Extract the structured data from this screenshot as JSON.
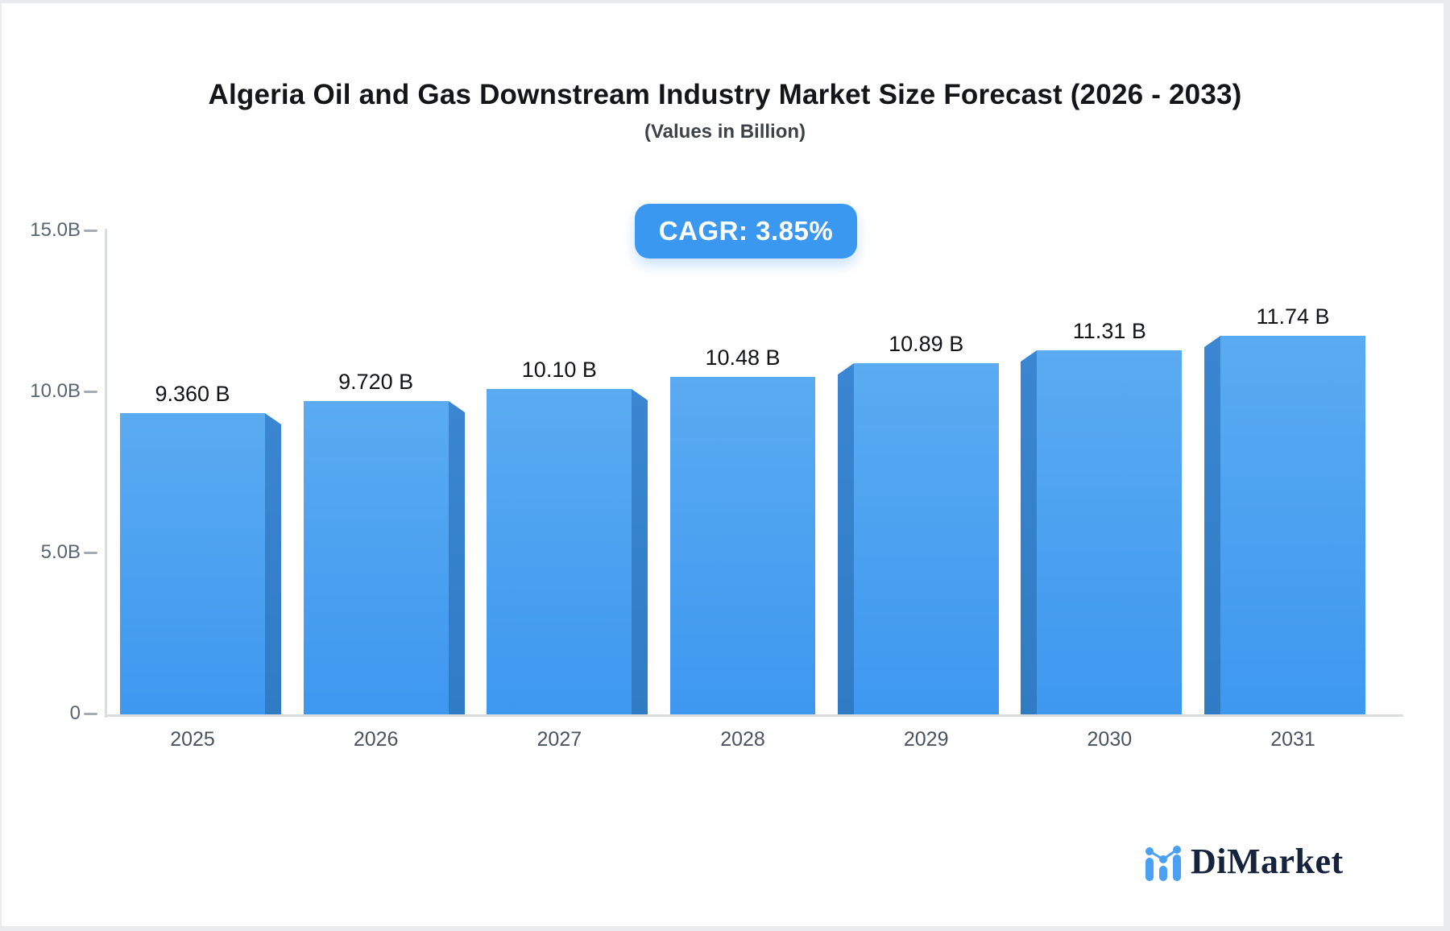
{
  "page": {
    "background": "#e9ebee",
    "card_background": "#ffffff"
  },
  "header": {
    "title": "Algeria Oil and Gas Downstream Industry Market Size Forecast (2026 - 2033)",
    "subtitle": "(Values in Billion)"
  },
  "badge": {
    "label": "CAGR: 3.85%",
    "background": "#3b98f0",
    "text_color": "#ffffff"
  },
  "chart_data": {
    "type": "bar",
    "title": "Algeria Oil and Gas Downstream Industry Market Size Forecast (2026 - 2033)",
    "subtitle": "(Values in Billion)",
    "categories": [
      "2025",
      "2026",
      "2027",
      "2028",
      "2029",
      "2030",
      "2031"
    ],
    "values": [
      9.36,
      9.72,
      10.1,
      10.48,
      10.89,
      11.31,
      11.74
    ],
    "value_labels": [
      "9.360 B",
      "9.720 B",
      "10.10 B",
      "10.48 B",
      "10.89 B",
      "11.31 B",
      "11.74 B"
    ],
    "unit": "Billion",
    "xlabel": "",
    "ylabel": "",
    "ylim": [
      0,
      15
    ],
    "y_axis": [
      {
        "label": "15.0B",
        "value": 15
      },
      {
        "label": "10.0B",
        "value": 10
      },
      {
        "label": "5.0B",
        "value": 5
      },
      {
        "label": "0",
        "value": 0
      }
    ],
    "grid": false,
    "legend_position": "none",
    "bar_color_top": "#5aabf1",
    "bar_color_bottom": "#3e98f0",
    "bar_side_color_top": "#3a86d2",
    "bar_side_color_bottom": "#2f7cc4",
    "axis_color": "#d9dde0",
    "tick_color": "#a2abb3"
  },
  "footer": {
    "brand": "DiMarket",
    "brand_color": "#16233c",
    "logo_icon": "mini-bar-line-chart-icon",
    "icon_color": "#4aa0f2"
  }
}
